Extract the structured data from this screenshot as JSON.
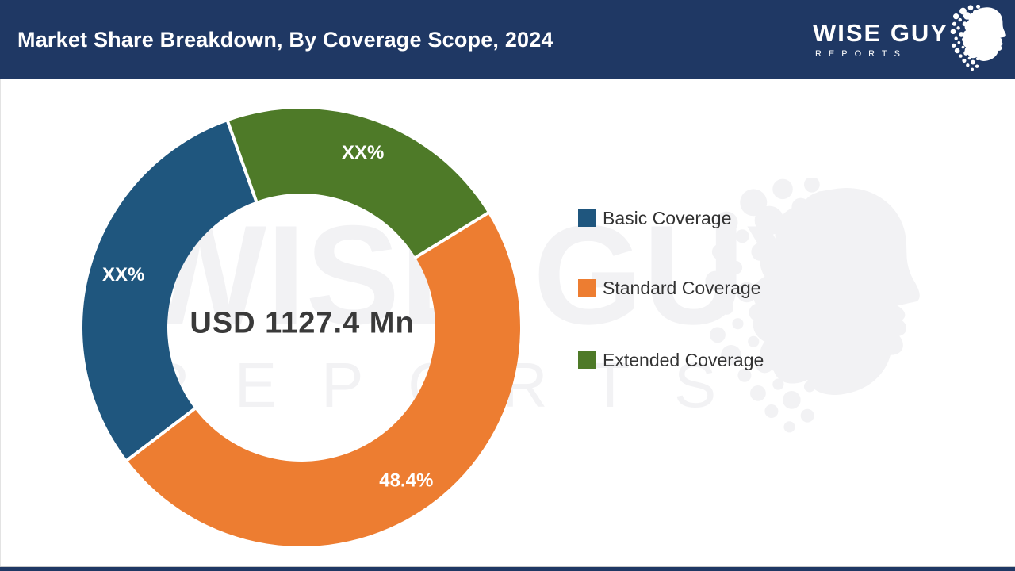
{
  "header": {
    "title": "Market Share Breakdown, By Coverage Scope, 2024",
    "logo": {
      "primary": "WISE GUY",
      "secondary": "REPORTS"
    }
  },
  "watermark": {
    "primary": "WISE GUY",
    "secondary": "REPORTS"
  },
  "chart_data": {
    "type": "donut",
    "title": "Market Share Breakdown, By Coverage Scope, 2024",
    "center_label": "USD 1127.4 Mn",
    "legend_position": "right",
    "series": [
      {
        "label": "Basic Coverage",
        "value_pct": 29.9,
        "display_label": "XX%",
        "color": "#1f567e"
      },
      {
        "label": "Standard Coverage",
        "value_pct": 48.4,
        "display_label": "48.4%",
        "color": "#ed7d31"
      },
      {
        "label": "Extended Coverage",
        "value_pct": 21.7,
        "display_label": "XX%",
        "color": "#4e7a28"
      }
    ],
    "start_angle_deg": 232.7,
    "draw_order": [
      0,
      2,
      1
    ]
  },
  "colors": {
    "header_bg": "#1f3864",
    "footer_bar": "#1f3864",
    "watermark": "#f2f2f4",
    "center_text": "#3a3a3a",
    "legend_text": "#333333",
    "slice_separator": "#ffffff"
  }
}
